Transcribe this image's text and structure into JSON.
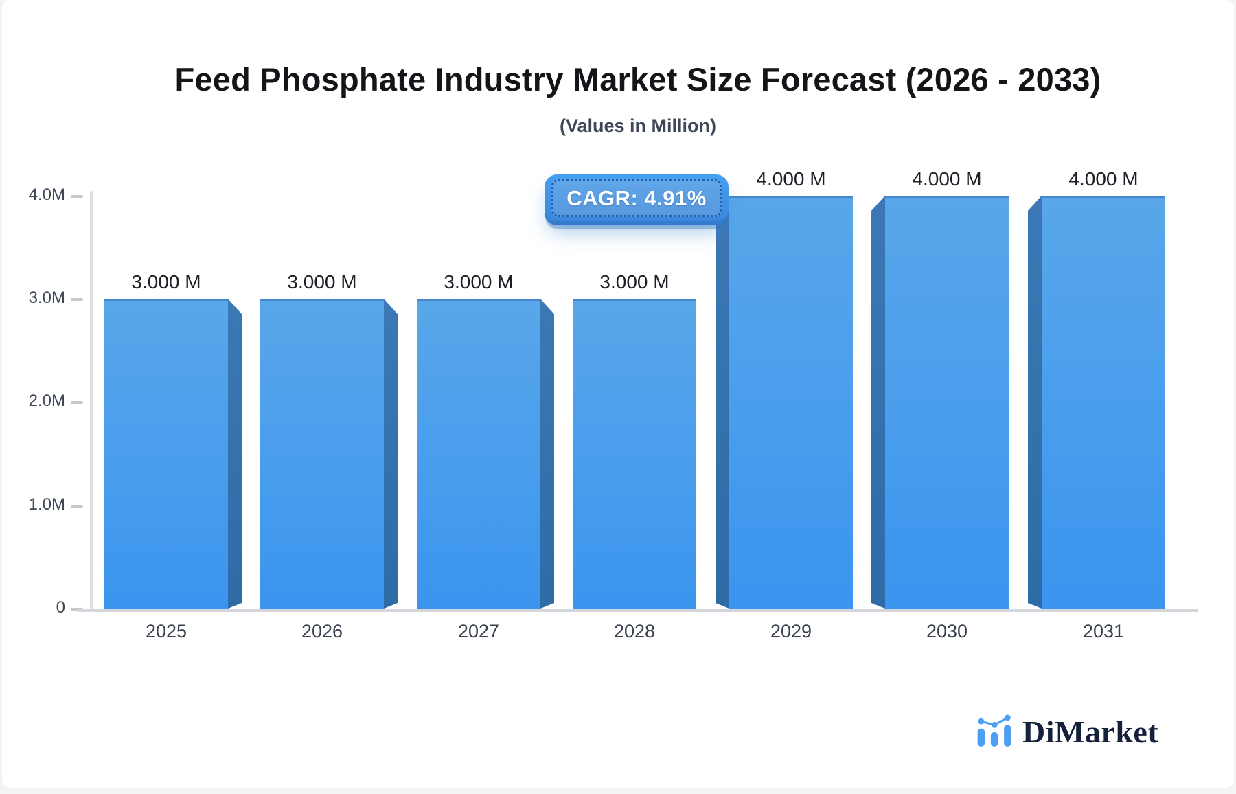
{
  "page": {
    "background_color": "#f3f4f6",
    "card_color": "#ffffff"
  },
  "header": {
    "title": "Feed Phosphate Industry Market Size Forecast (2026 - 2033)",
    "subtitle": "(Values in Million)"
  },
  "badge": {
    "label": "CAGR: 4.91%",
    "fill_color": "#3f90e5",
    "dotted_border_color": "#1e5fae",
    "text_color": "#ffffff"
  },
  "chart_data": {
    "type": "bar",
    "title": "Feed Phosphate Industry Market Size Forecast (2026 - 2033)",
    "subtitle": "(Values in Million)",
    "unit": "Million",
    "categories": [
      "2025",
      "2026",
      "2027",
      "2028",
      "2029",
      "2030",
      "2031"
    ],
    "values": [
      3.0,
      3.0,
      3.0,
      3.0,
      4.0,
      4.0,
      4.0
    ],
    "value_labels": [
      "3.000 M",
      "3.000 M",
      "3.000 M",
      "3.000 M",
      "4.000 M",
      "4.000 M",
      "4.000 M"
    ],
    "xlabel": "",
    "ylabel": "",
    "ylim": [
      0,
      4.4
    ],
    "yticks": [
      {
        "value": 0,
        "label": "0"
      },
      {
        "value": 1,
        "label": "1.0M"
      },
      {
        "value": 2,
        "label": "2.0M"
      },
      {
        "value": 3,
        "label": "3.0M"
      },
      {
        "value": 4,
        "label": "4.0M"
      }
    ],
    "grid": false,
    "legend": false,
    "annotation": "CAGR: 4.91%",
    "bar_face_color_top": "#59a7ea",
    "bar_face_color_bottom": "#3b95ef",
    "bar_side_color": "#3a74b0"
  },
  "footer": {
    "brand": "DiMarket",
    "brand_text_color": "#15213c",
    "brand_icon_color": "#4d9ff2"
  }
}
